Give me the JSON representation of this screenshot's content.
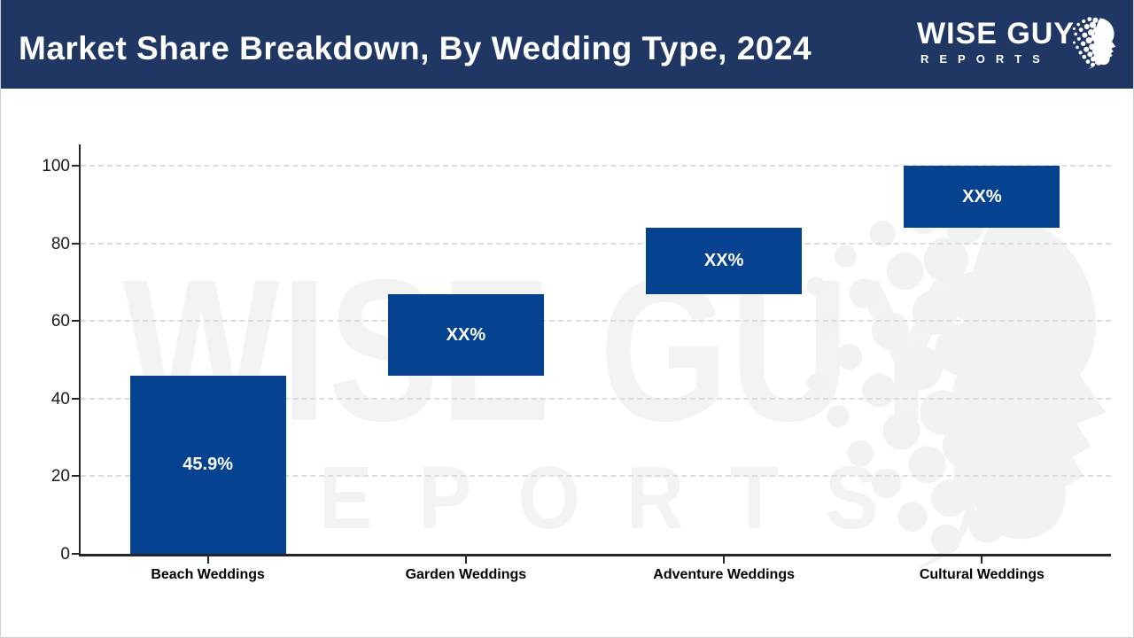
{
  "page": {
    "background": "#ffffff",
    "border_color": "#cfcfcf"
  },
  "header": {
    "background": "#203764",
    "title": "Market Share Breakdown, By Wedding Type, 2024",
    "brand": {
      "line1": "WISE GUY",
      "line2": "REPORTS"
    }
  },
  "watermark": {
    "line1": "WISE GUY",
    "line2": "REPORTS"
  },
  "chart_data": {
    "type": "bar",
    "subtype": "waterfall",
    "title": "Market Share Breakdown, By Wedding Type, 2024",
    "categories": [
      "Beach Weddings",
      "Garden Weddings",
      "Adventure Weddings",
      "Cultural Weddings"
    ],
    "segments": [
      {
        "category": "Beach Weddings",
        "start": 0,
        "end": 45.9,
        "label": "45.9%"
      },
      {
        "category": "Garden Weddings",
        "start": 45.9,
        "end": 67,
        "label": "XX%"
      },
      {
        "category": "Adventure Weddings",
        "start": 67,
        "end": 84,
        "label": "XX%"
      },
      {
        "category": "Cultural Weddings",
        "start": 84,
        "end": 100,
        "label": "XX%"
      }
    ],
    "ylim": [
      0,
      100
    ],
    "yticks": [
      0,
      20,
      40,
      60,
      80,
      100
    ],
    "bar_color": "#05428F",
    "grid": true,
    "grid_style": "dashed",
    "grid_color": "#dcdcdc",
    "axis_color": "#262626",
    "legend": false
  }
}
